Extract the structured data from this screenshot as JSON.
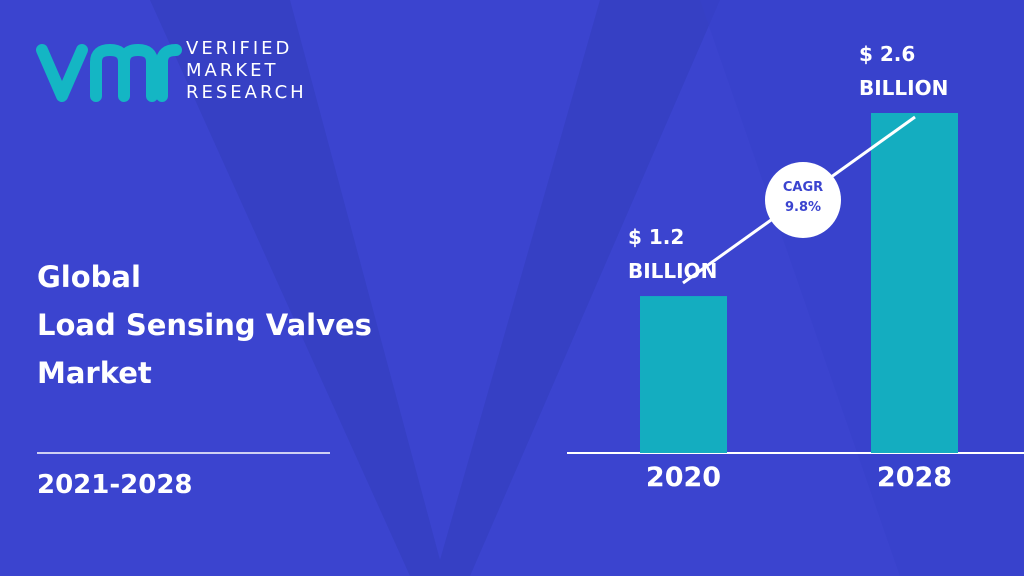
{
  "brand": {
    "lines": [
      "VERIFIED",
      "MARKET",
      "RESEARCH"
    ]
  },
  "chart_data": {
    "type": "bar",
    "title": [
      "Global",
      "Load Sensing Valves",
      "Market"
    ],
    "subtitle": "2021-2028",
    "categories": [
      "2020",
      "2028"
    ],
    "values": [
      1.2,
      2.6
    ],
    "value_labels": [
      "$ 1.2 BILLION",
      "$ 2.6 BILLION"
    ],
    "color": "#14adc0",
    "annotation": {
      "label": "CAGR",
      "value": "9.8%"
    }
  }
}
